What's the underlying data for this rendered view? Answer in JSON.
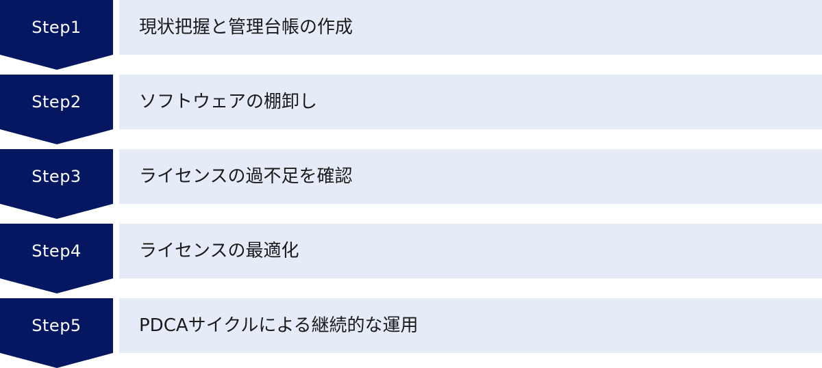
{
  "colors": {
    "step_fill": "#041760",
    "bar_fill": "#e6ebf8",
    "step_text": "#ffffff",
    "bar_text": "#1a1a1a"
  },
  "steps": [
    {
      "label": "Step1",
      "text": "現状把握と管理台帳の作成"
    },
    {
      "label": "Step2",
      "text": "ソフトウェアの棚卸し"
    },
    {
      "label": "Step3",
      "text": "ライセンスの過不足を確認"
    },
    {
      "label": "Step4",
      "text": "ライセンスの最適化"
    },
    {
      "label": "Step5",
      "text": "PDCAサイクルによる継続的な運用"
    }
  ]
}
